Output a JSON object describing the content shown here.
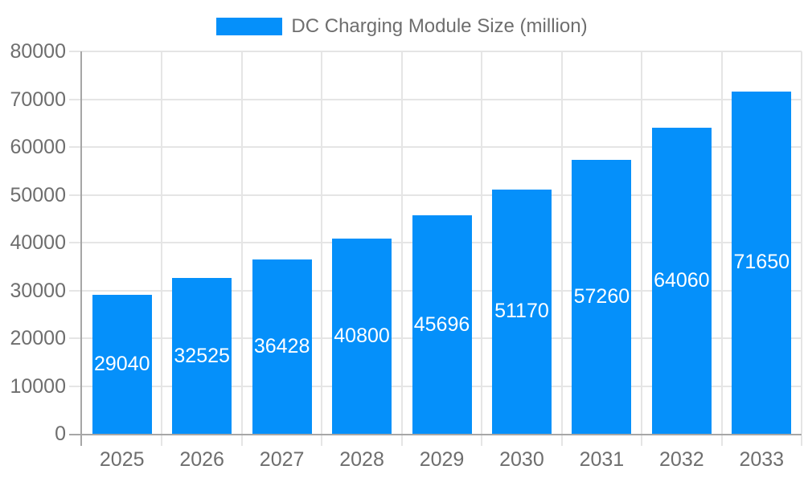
{
  "legend": {
    "label": "DC Charging Module Size (million)"
  },
  "colors": {
    "bar": "#0590FA",
    "text": "#6e6e6e",
    "grid": "#e5e5e5",
    "axis": "#a6a6a6",
    "bar_label": "#ffffff",
    "background": "#ffffff"
  },
  "chart_data": {
    "type": "bar",
    "title": "DC Charging Module Size (million)",
    "categories": [
      "2025",
      "2026",
      "2027",
      "2028",
      "2029",
      "2030",
      "2031",
      "2032",
      "2033"
    ],
    "values": [
      29040,
      32525,
      36428,
      40800,
      45696,
      51170,
      57260,
      64060,
      71650
    ],
    "xlabel": "",
    "ylabel": "",
    "ylim": [
      0,
      80000
    ],
    "yticks": [
      0,
      10000,
      20000,
      30000,
      40000,
      50000,
      60000,
      70000,
      80000
    ],
    "grid": true,
    "legend_position": "top",
    "value_labels": "inside-center"
  }
}
